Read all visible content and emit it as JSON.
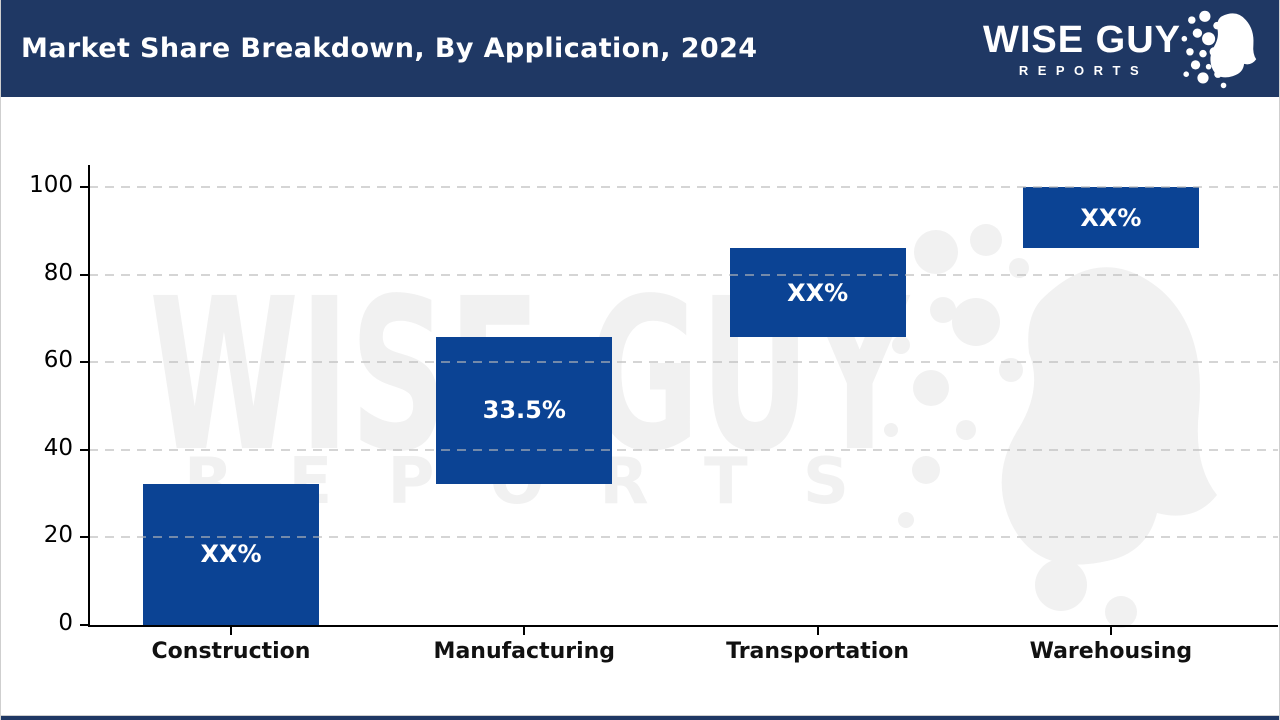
{
  "header": {
    "title": "Market Share Breakdown, By Application, 2024",
    "logo": {
      "line1": "WISE GUY",
      "line2": "REPORTS"
    }
  },
  "watermark": {
    "line1": "WISE GUY",
    "line2": "REPORTS"
  },
  "chart_data": {
    "type": "bar",
    "subtype": "waterfall (floating segment bars)",
    "title": "Market Share Breakdown, By Application, 2024",
    "categories": [
      "Construction",
      "Manufacturing",
      "Transportation",
      "Warehousing"
    ],
    "bars": [
      {
        "category": "Construction",
        "from": 0,
        "to": 32.3,
        "label": "XX%"
      },
      {
        "category": "Manufacturing",
        "from": 32.3,
        "to": 65.8,
        "label": "33.5%"
      },
      {
        "category": "Transportation",
        "from": 65.8,
        "to": 86,
        "label": "XX%"
      },
      {
        "category": "Warehousing",
        "from": 86,
        "to": 100,
        "label": "XX%"
      }
    ],
    "xlabel": "",
    "ylabel": "",
    "ylim": [
      0,
      105
    ],
    "yticks": [
      0,
      20,
      40,
      60,
      80,
      100
    ],
    "grid": "horizontal dashed gridlines, drawn above bars",
    "legend": "none"
  },
  "colors": {
    "header_bg": "#1f3864",
    "footer_bar": "#1f3864",
    "bar": "#0b4394",
    "bar_label": "#ffffff",
    "axis": "#000000",
    "gridline": "rgba(185,185,185,0.6)",
    "watermark": "#f1f1f1",
    "page_bg": "#ffffff",
    "border": "#cfcfcf"
  }
}
